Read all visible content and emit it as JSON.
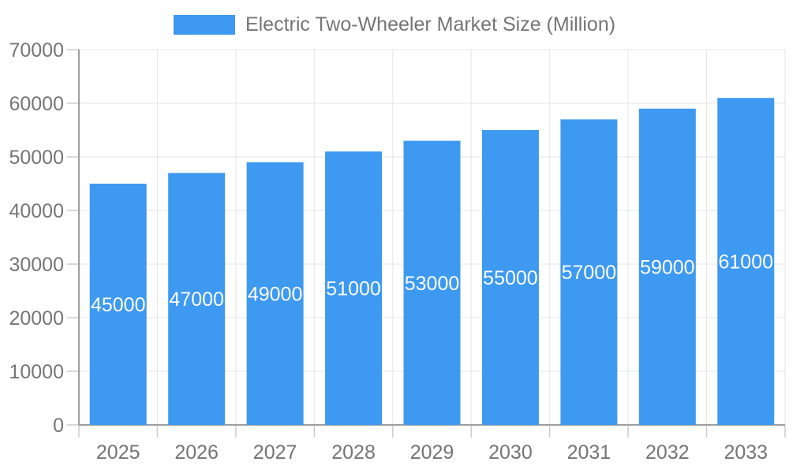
{
  "chart_data": {
    "type": "bar",
    "title": "Electric Two-Wheeler Market Size (Million)",
    "categories": [
      "2025",
      "2026",
      "2027",
      "2028",
      "2029",
      "2030",
      "2031",
      "2032",
      "2033"
    ],
    "values": [
      45000,
      47000,
      49000,
      51000,
      53000,
      55000,
      57000,
      59000,
      61000
    ],
    "bar_labels": [
      "45000",
      "47000",
      "49000",
      "51000",
      "53000",
      "55000",
      "57000",
      "59000",
      "61000"
    ],
    "xlabel": "",
    "ylabel": "",
    "ylim": [
      0,
      70000
    ],
    "ytick_step": 10000,
    "ytick_labels": [
      "0",
      "10000",
      "20000",
      "30000",
      "40000",
      "50000",
      "60000",
      "70000"
    ],
    "legend_position": "top",
    "grid": true,
    "colors": {
      "bar": "#3E99F0",
      "grid_line": "#E6E6E6",
      "axis_line": "#9E9E9E",
      "tick_line": "#CCCCCC",
      "axis_text": "#757575",
      "bar_label_text": "#FFFFFF",
      "background": "#FFFFFF"
    }
  }
}
